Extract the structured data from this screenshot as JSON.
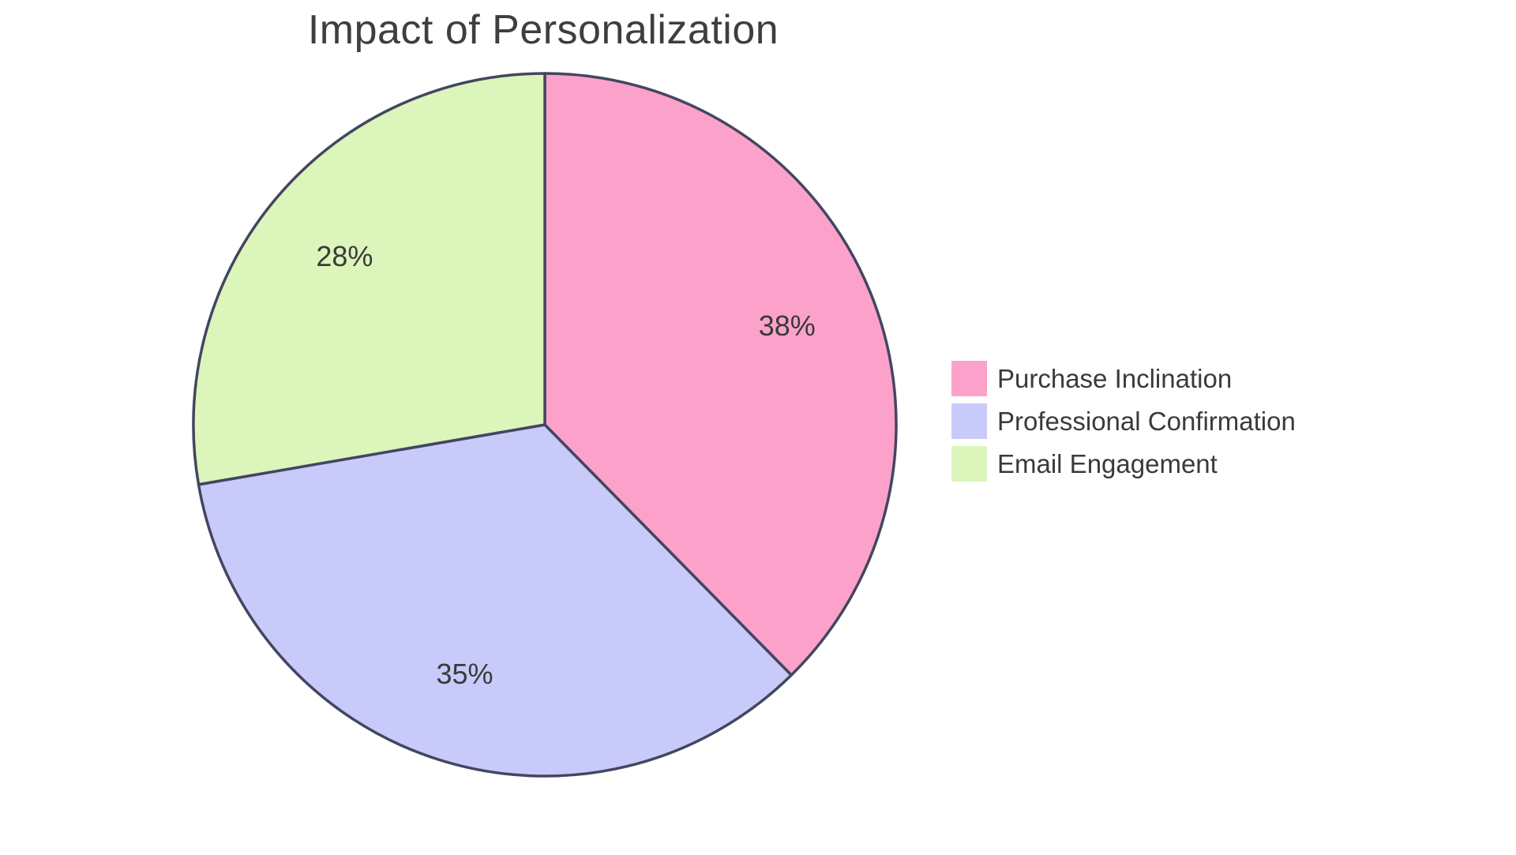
{
  "chart_data": {
    "type": "pie",
    "title": "Impact of Personalization",
    "categories": [
      "Purchase Inclination",
      "Professional Confirmation",
      "Email Engagement"
    ],
    "values": [
      38,
      35,
      28
    ],
    "slice_labels": [
      "38%",
      "35%",
      "28%"
    ],
    "colors": [
      "#FCA2CA",
      "#C8CBF9",
      "#DBF5BB"
    ],
    "outline_color": "#434660",
    "text_color": "#3A3A3A",
    "background_color": "#FFFFFF",
    "start_angle_deg": 0,
    "direction": "clockwise",
    "legend_position": "right",
    "legend": [
      {
        "label": "Purchase Inclination",
        "color": "#FCA2CA"
      },
      {
        "label": "Professional Confirmation",
        "color": "#C8CBF9"
      },
      {
        "label": "Email Engagement",
        "color": "#DBF5BB"
      }
    ]
  }
}
